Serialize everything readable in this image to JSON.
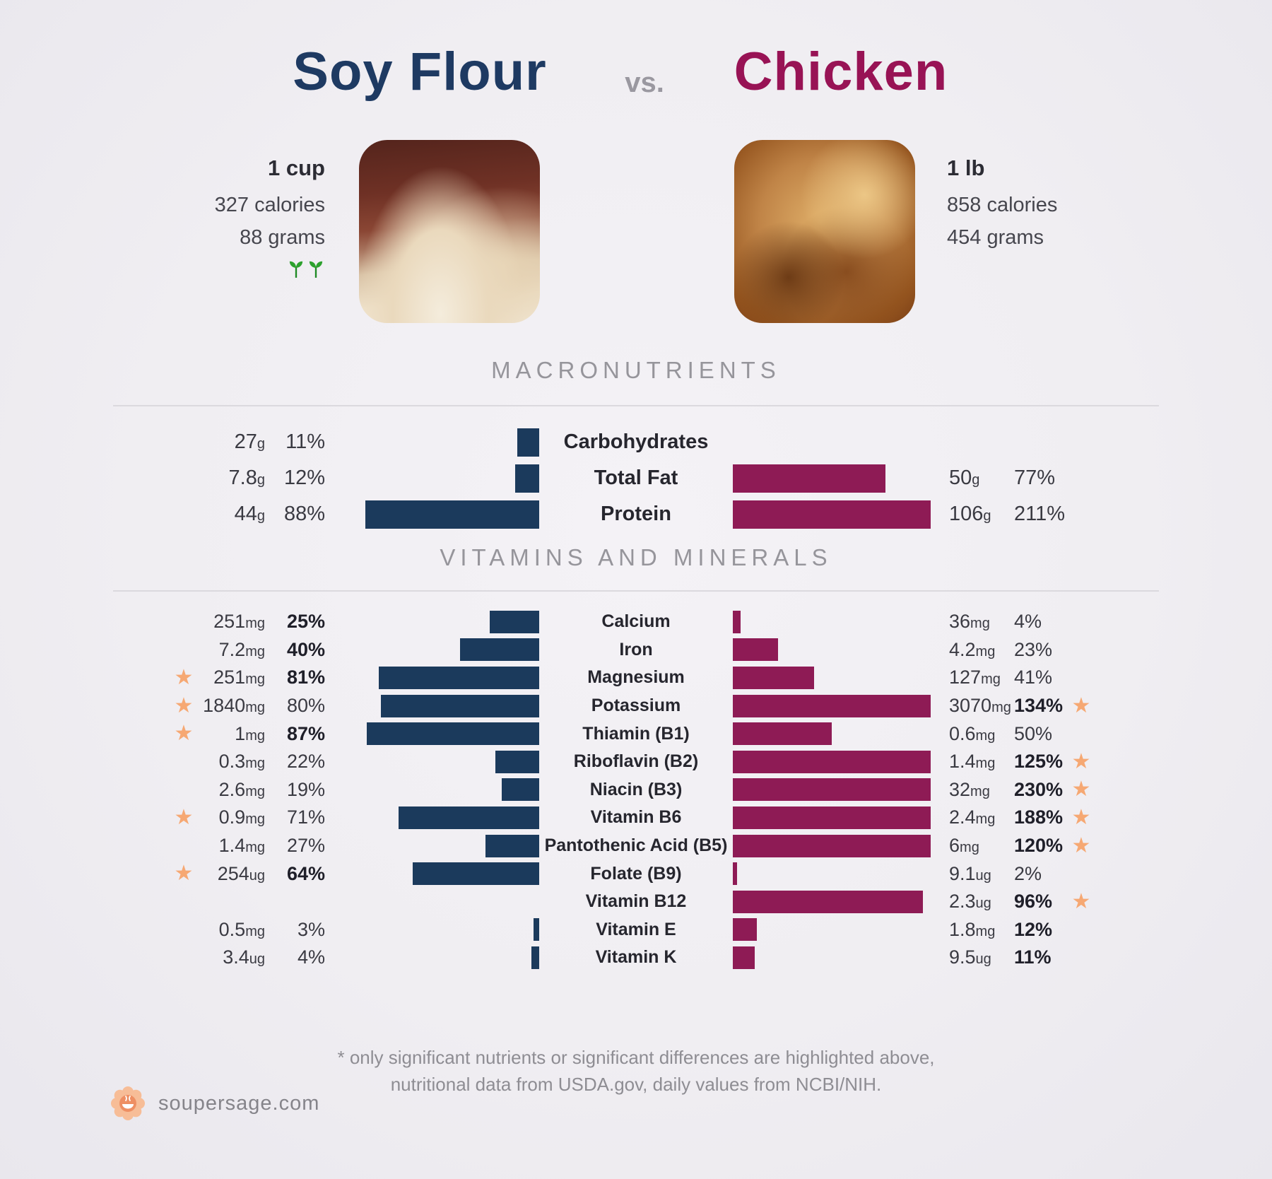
{
  "header": {
    "left_title": "Soy Flour",
    "vs": "vs.",
    "right_title": "Chicken",
    "left": {
      "serving": "1 cup",
      "calories": "327 calories",
      "weight": "88 grams"
    },
    "right": {
      "serving": "1 lb",
      "calories": "858 calories",
      "weight": "454 grams"
    }
  },
  "section_titles": {
    "macros": "MACRONUTRIENTS",
    "vitamins": "VITAMINS AND MINERALS"
  },
  "chart_data": {
    "type": "bar",
    "orientation": "horizontal-paired",
    "note": "percent of daily value; bar length capped at 100%",
    "left_series": "Soy Flour (1 cup)",
    "right_series": "Chicken (1 lb)",
    "left_color": "#1b3a5c",
    "right_color": "#8e1b55",
    "macros": [
      {
        "name": "Carbohydrates",
        "l": {
          "v": "27",
          "u": "g",
          "pct": 11,
          "pl": "11%",
          "bold": false,
          "star": false
        },
        "r": null
      },
      {
        "name": "Total Fat",
        "l": {
          "v": "7.8",
          "u": "g",
          "pct": 12,
          "pl": "12%",
          "bold": false,
          "star": false
        },
        "r": {
          "v": "50",
          "u": "g",
          "pct": 77,
          "pl": "77%",
          "bold": false,
          "star": false
        }
      },
      {
        "name": "Protein",
        "l": {
          "v": "44",
          "u": "g",
          "pct": 88,
          "pl": "88%",
          "bold": false,
          "star": false
        },
        "r": {
          "v": "106",
          "u": "g",
          "pct": 211,
          "pl": "211%",
          "bold": false,
          "star": false
        }
      }
    ],
    "rows": [
      {
        "name": "Calcium",
        "l": {
          "v": "251",
          "u": "mg",
          "pct": 25,
          "pl": "25%",
          "bold": true,
          "star": false
        },
        "r": {
          "v": "36",
          "u": "mg",
          "pct": 4,
          "pl": "4%",
          "bold": false,
          "star": false
        }
      },
      {
        "name": "Iron",
        "l": {
          "v": "7.2",
          "u": "mg",
          "pct": 40,
          "pl": "40%",
          "bold": true,
          "star": false
        },
        "r": {
          "v": "4.2",
          "u": "mg",
          "pct": 23,
          "pl": "23%",
          "bold": false,
          "star": false
        }
      },
      {
        "name": "Magnesium",
        "l": {
          "v": "251",
          "u": "mg",
          "pct": 81,
          "pl": "81%",
          "bold": true,
          "star": true
        },
        "r": {
          "v": "127",
          "u": "mg",
          "pct": 41,
          "pl": "41%",
          "bold": false,
          "star": false
        }
      },
      {
        "name": "Potassium",
        "l": {
          "v": "1840",
          "u": "mg",
          "pct": 80,
          "pl": "80%",
          "bold": false,
          "star": true
        },
        "r": {
          "v": "3070",
          "u": "mg",
          "pct": 134,
          "pl": "134%",
          "bold": true,
          "star": true
        }
      },
      {
        "name": "Thiamin (B1)",
        "l": {
          "v": "1",
          "u": "mg",
          "pct": 87,
          "pl": "87%",
          "bold": true,
          "star": true
        },
        "r": {
          "v": "0.6",
          "u": "mg",
          "pct": 50,
          "pl": "50%",
          "bold": false,
          "star": false
        }
      },
      {
        "name": "Riboflavin (B2)",
        "l": {
          "v": "0.3",
          "u": "mg",
          "pct": 22,
          "pl": "22%",
          "bold": false,
          "star": false
        },
        "r": {
          "v": "1.4",
          "u": "mg",
          "pct": 125,
          "pl": "125%",
          "bold": true,
          "star": true
        }
      },
      {
        "name": "Niacin (B3)",
        "l": {
          "v": "2.6",
          "u": "mg",
          "pct": 19,
          "pl": "19%",
          "bold": false,
          "star": false
        },
        "r": {
          "v": "32",
          "u": "mg",
          "pct": 230,
          "pl": "230%",
          "bold": true,
          "star": true
        }
      },
      {
        "name": "Vitamin B6",
        "l": {
          "v": "0.9",
          "u": "mg",
          "pct": 71,
          "pl": "71%",
          "bold": false,
          "star": true
        },
        "r": {
          "v": "2.4",
          "u": "mg",
          "pct": 188,
          "pl": "188%",
          "bold": true,
          "star": true
        }
      },
      {
        "name": "Pantothenic Acid (B5)",
        "l": {
          "v": "1.4",
          "u": "mg",
          "pct": 27,
          "pl": "27%",
          "bold": false,
          "star": false
        },
        "r": {
          "v": "6",
          "u": "mg",
          "pct": 120,
          "pl": "120%",
          "bold": true,
          "star": true
        }
      },
      {
        "name": "Folate (B9)",
        "l": {
          "v": "254",
          "u": "ug",
          "pct": 64,
          "pl": "64%",
          "bold": true,
          "star": true
        },
        "r": {
          "v": "9.1",
          "u": "ug",
          "pct": 2,
          "pl": "2%",
          "bold": false,
          "star": false
        }
      },
      {
        "name": "Vitamin B12",
        "l": null,
        "r": {
          "v": "2.3",
          "u": "ug",
          "pct": 96,
          "pl": "96%",
          "bold": true,
          "star": true
        }
      },
      {
        "name": "Vitamin E",
        "l": {
          "v": "0.5",
          "u": "mg",
          "pct": 3,
          "pl": "3%",
          "bold": false,
          "star": false
        },
        "r": {
          "v": "1.8",
          "u": "mg",
          "pct": 12,
          "pl": "12%",
          "bold": true,
          "star": false
        }
      },
      {
        "name": "Vitamin K",
        "l": {
          "v": "3.4",
          "u": "ug",
          "pct": 4,
          "pl": "4%",
          "bold": false,
          "star": false
        },
        "r": {
          "v": "9.5",
          "u": "ug",
          "pct": 11,
          "pl": "11%",
          "bold": true,
          "star": false
        }
      }
    ]
  },
  "footnote": {
    "line1": "* only significant nutrients or significant differences are highlighted above,",
    "line2": "nutritional data from USDA.gov, daily values from NCBI/NIH."
  },
  "footer": {
    "site": "soupersage.com"
  },
  "colors": {
    "navy": "#1b3a5c",
    "maroon": "#8e1b55",
    "title_navy": "#1e3a62",
    "title_maroon": "#981355",
    "star_orange": "#f6a873",
    "heading_gray": "#96959b",
    "background": "#f0eef2"
  }
}
